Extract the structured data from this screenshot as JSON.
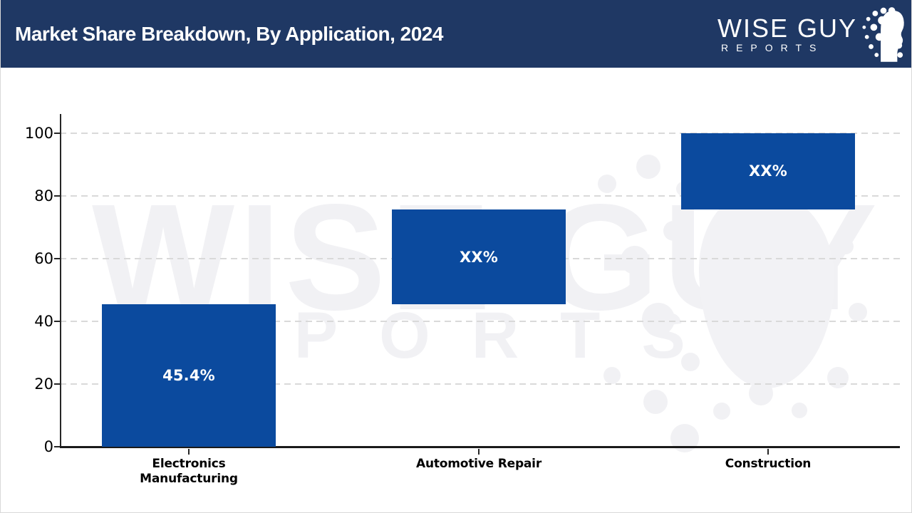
{
  "header": {
    "title": "Market Share Breakdown, By Application, 2024"
  },
  "logo": {
    "line1": "WISE GUY",
    "line2": "REPORTS"
  },
  "watermark": {
    "line1": "WISE GUY",
    "line2": "REPORTS"
  },
  "colors": {
    "header_bg": "#1f3864",
    "bar": "#0b4a9e",
    "gridline": "#d9d9d9",
    "axis": "#262626",
    "watermark": "#f1f1f4",
    "page_border": "#d9d9d9",
    "title_text": "#ffffff",
    "bar_label_text": "#ffffff"
  },
  "chart_data": {
    "type": "bar",
    "variant": "floating-segment bars (stacked market-share breakdown)",
    "title": "Market Share Breakdown, By Application, 2024",
    "categories": [
      "Electronics Manufacturing",
      "Automotive Repair",
      "Construction"
    ],
    "categories_display": [
      [
        "Electronics",
        "Manufacturing"
      ],
      [
        "Automotive Repair"
      ],
      [
        "Construction"
      ]
    ],
    "segments": [
      {
        "category": "Electronics Manufacturing",
        "start": 0,
        "end": 45.4,
        "share": 45.4,
        "label": "45.4%"
      },
      {
        "category": "Automotive Repair",
        "start": 45.4,
        "end": 75.7,
        "share": 30.3,
        "label": "XX%"
      },
      {
        "category": "Construction",
        "start": 75.7,
        "end": 100,
        "share": 24.3,
        "label": "XX%"
      }
    ],
    "xlabel": "",
    "ylabel": "",
    "yticks": [
      0,
      20,
      40,
      60,
      80,
      100
    ],
    "ylim": [
      0,
      106
    ],
    "grid": {
      "axis": "y",
      "style": "dashed",
      "on": true
    },
    "legend": "none",
    "bar_color": "#0b4a9e",
    "bar_label_color": "#ffffff"
  }
}
